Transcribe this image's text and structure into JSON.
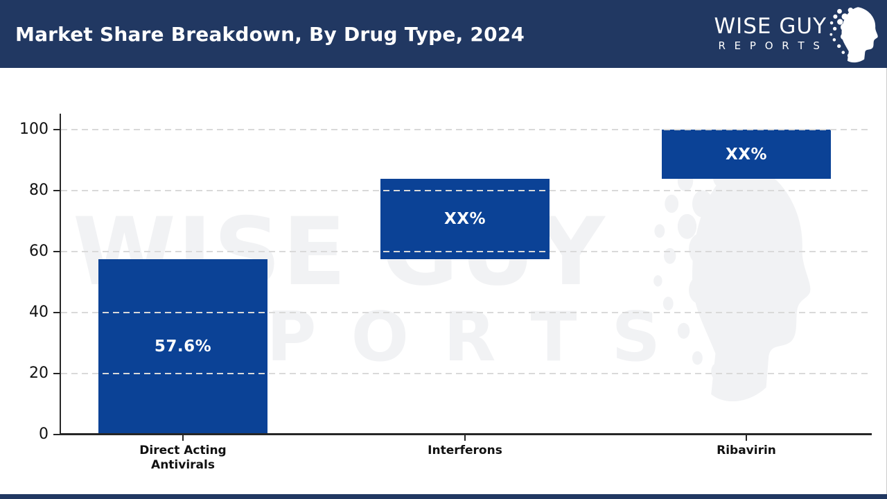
{
  "header": {
    "title": "Market Share Breakdown, By Drug Type, 2024",
    "logo": {
      "line1": "WISE GUY",
      "line2": "R E P O R T S"
    }
  },
  "watermark": {
    "line1": "WISE GUY",
    "line2": "R E P O R T S"
  },
  "colors": {
    "header_bg": "#213862",
    "bar": "#0b4296",
    "grid": "#d9d9d9",
    "axis": "#262626",
    "watermark": "#f1f2f4",
    "value_label": "#ffffff"
  },
  "chart_data": {
    "type": "bar",
    "subtype": "waterfall",
    "title": "Market Share Breakdown, By Drug Type, 2024",
    "unit": "%",
    "categories": [
      [
        "Direct Acting",
        "Antivirals"
      ],
      [
        "Interferons"
      ],
      [
        "Ribavirin"
      ]
    ],
    "segments": [
      {
        "category": "Direct Acting Antivirals",
        "from": 0,
        "to": 57.6,
        "label": "57.6%"
      },
      {
        "category": "Interferons",
        "from": 57.6,
        "to": 83.8,
        "label": "XX%"
      },
      {
        "category": "Ribavirin",
        "from": 83.8,
        "to": 100,
        "label": "XX%"
      }
    ],
    "yticks": [
      0,
      20,
      40,
      60,
      80,
      100
    ],
    "ylim": [
      0,
      100
    ],
    "xlabel": "",
    "ylabel": "",
    "grid": "dashed-horizontal-on-top",
    "legend": "none"
  }
}
